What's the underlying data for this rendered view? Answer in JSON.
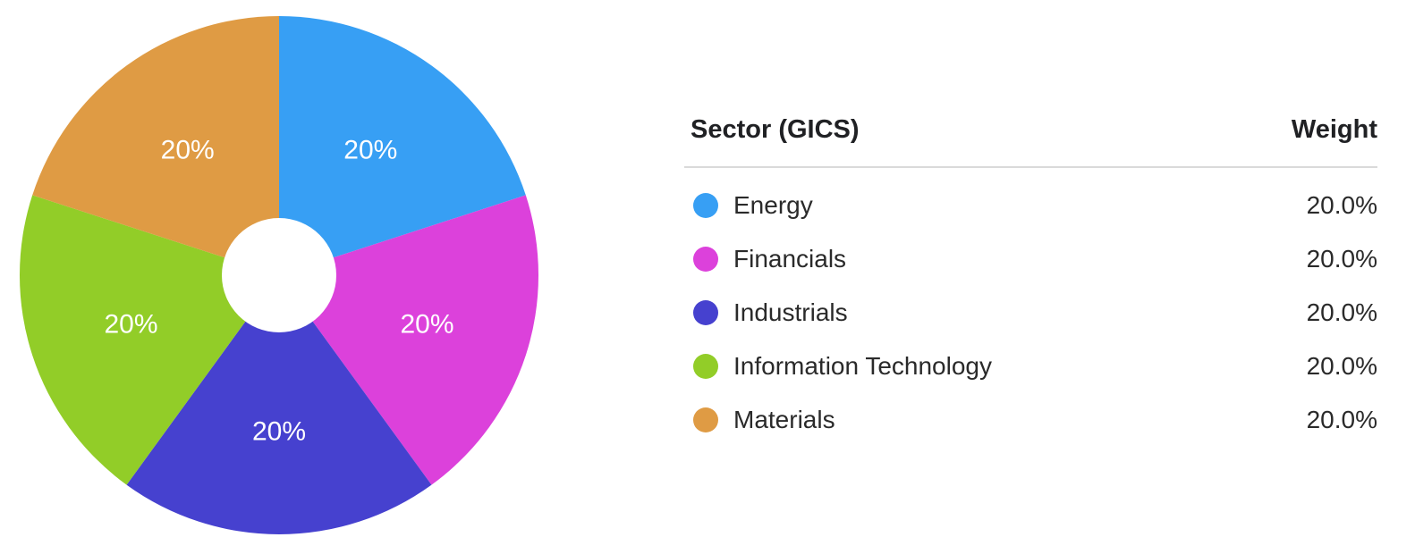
{
  "chart_data": {
    "type": "pie",
    "subtype": "donut",
    "title": "",
    "categories": [
      "Energy",
      "Financials",
      "Industrials",
      "Information Technology",
      "Materials"
    ],
    "values": [
      20,
      20,
      20,
      20,
      20
    ],
    "unit": "%",
    "slice_labels": [
      "20%",
      "20%",
      "20%",
      "20%",
      "20%"
    ],
    "colors": [
      "#379FF4",
      "#DC41DB",
      "#4641CF",
      "#92CD28",
      "#DF9B44"
    ],
    "start_angle_deg": 0,
    "direction": "clockwise",
    "inner_radius_ratio": 0.22,
    "slice_label_color": "#ffffff",
    "legend_position": "right-table",
    "grid": false
  },
  "table": {
    "header": {
      "sector": "Sector (GICS)",
      "weight": "Weight"
    },
    "rows": [
      {
        "sector": "Energy",
        "weight": "20.0%",
        "color": "#379FF4"
      },
      {
        "sector": "Financials",
        "weight": "20.0%",
        "color": "#DC41DB"
      },
      {
        "sector": "Industrials",
        "weight": "20.0%",
        "color": "#4641CF"
      },
      {
        "sector": "Information Technology",
        "weight": "20.0%",
        "color": "#92CD28"
      },
      {
        "sector": "Materials",
        "weight": "20.0%",
        "color": "#DF9B44"
      }
    ]
  }
}
